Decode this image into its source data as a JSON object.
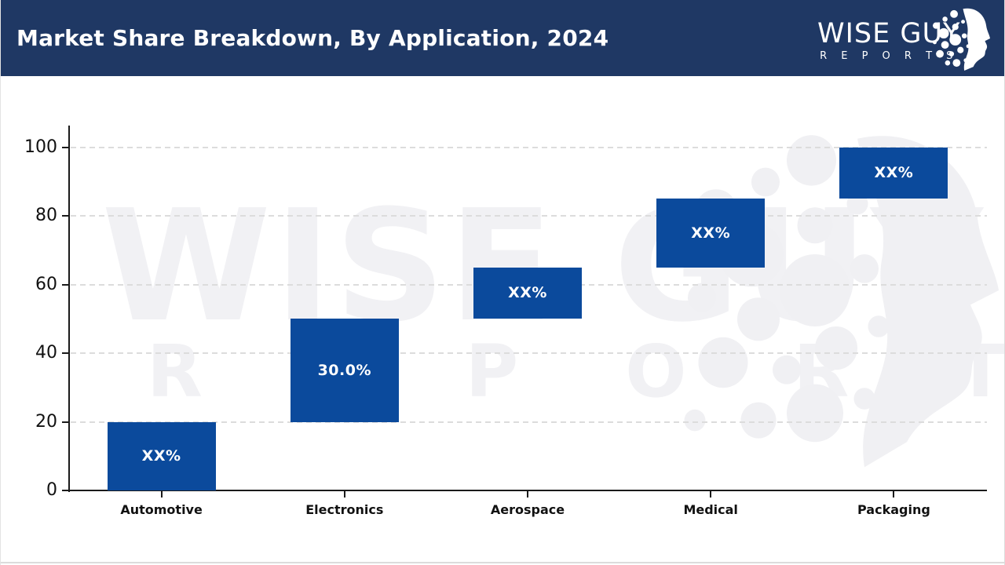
{
  "header": {
    "title": "Market Share Breakdown, By Application, 2024",
    "bg_color": "#1F3864",
    "logo_line1": "WISE GUY",
    "logo_line2": "R E P O R T S"
  },
  "watermark": {
    "line1": "WISE GUY",
    "line2": "R E P O R T S"
  },
  "chart_data": {
    "type": "bar",
    "variant": "floating-waterfall",
    "title": "Market Share Breakdown, By Application, 2024",
    "categories": [
      "Automotive",
      "Electronics",
      "Aerospace",
      "Medical",
      "Packaging"
    ],
    "segments": [
      {
        "category": "Automotive",
        "start": 0,
        "end": 20,
        "label": "XX%"
      },
      {
        "category": "Electronics",
        "start": 20,
        "end": 50,
        "label": "30.0%"
      },
      {
        "category": "Aerospace",
        "start": 50,
        "end": 65,
        "label": "XX%"
      },
      {
        "category": "Medical",
        "start": 65,
        "end": 85,
        "label": "XX%"
      },
      {
        "category": "Packaging",
        "start": 85,
        "end": 100,
        "label": "XX%"
      }
    ],
    "y_ticks": [
      0,
      20,
      40,
      60,
      80,
      100
    ],
    "ylim": [
      0,
      106
    ],
    "xlabel": "",
    "ylabel": "",
    "legend": false,
    "grid": "horizontal-dashed",
    "bar_color": "#0B4A9C",
    "grid_color": "#DCDCDC",
    "axis_color": "#1A1A1A",
    "label_color": "#FFFFFF"
  }
}
